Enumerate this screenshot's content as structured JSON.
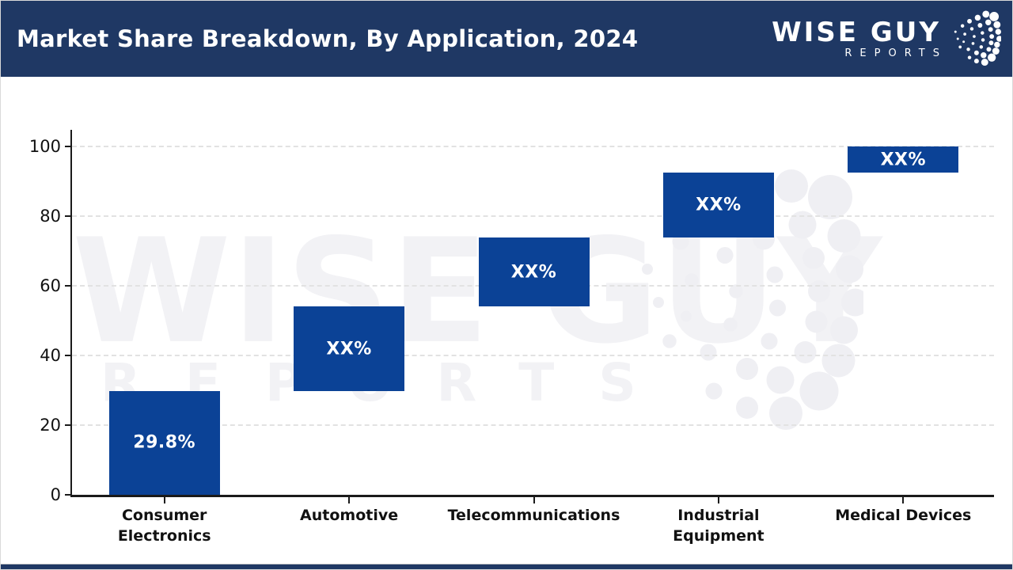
{
  "header": {
    "title": "Market Share Breakdown, By Application, 2024",
    "logo": {
      "line1": "WISE GUY",
      "line2": "REPORTS"
    }
  },
  "watermark": {
    "line1": "WISE GUY",
    "line2": "REPORTS"
  },
  "chart_data": {
    "type": "bar",
    "subtype": "waterfall",
    "title": "Market Share Breakdown, By Application, 2024",
    "categories": [
      "Consumer Electronics",
      "Automotive",
      "Telecommunications",
      "Industrial Equipment",
      "Medical Devices"
    ],
    "segments": [
      {
        "id": "consumer-electronics",
        "category": "Consumer Electronics",
        "lines": [
          "Consumer",
          "Electronics"
        ],
        "start": 0,
        "end": 29.8,
        "label": "29.8%"
      },
      {
        "id": "automotive",
        "category": "Automotive",
        "lines": [
          "Automotive"
        ],
        "start": 29.8,
        "end": 54.1,
        "label": "XX%"
      },
      {
        "id": "telecommunications",
        "category": "Telecommunications",
        "lines": [
          "Telecommunications"
        ],
        "start": 54.1,
        "end": 73.9,
        "label": "XX%"
      },
      {
        "id": "industrial-equipment",
        "category": "Industrial Equipment",
        "lines": [
          "Industrial",
          "Equipment"
        ],
        "start": 73.9,
        "end": 92.5,
        "label": "XX%"
      },
      {
        "id": "medical-devices",
        "category": "Medical Devices",
        "lines": [
          "Medical Devices"
        ],
        "start": 92.5,
        "end": 100,
        "label": "XX%"
      }
    ],
    "bar_labels": [
      "29.8%",
      "XX%",
      "XX%",
      "XX%",
      "XX%"
    ],
    "xlabel": "",
    "ylabel": "",
    "yticks": [
      0,
      20,
      40,
      60,
      80,
      100
    ],
    "ylim": [
      0,
      105.5
    ],
    "grid": "horizontal-dashed",
    "legend": "none"
  },
  "colors": {
    "header_bg": "#1f3864",
    "footer_bg": "#1f3864",
    "bar": "#0b4296",
    "bar_label": "#ffffff",
    "axis": "#1a1a1a",
    "grid": "#e2e2e2",
    "watermark_text": "#f2f2f5",
    "watermark_dots": "#efeff3",
    "title": "#ffffff",
    "text": "#111111"
  }
}
